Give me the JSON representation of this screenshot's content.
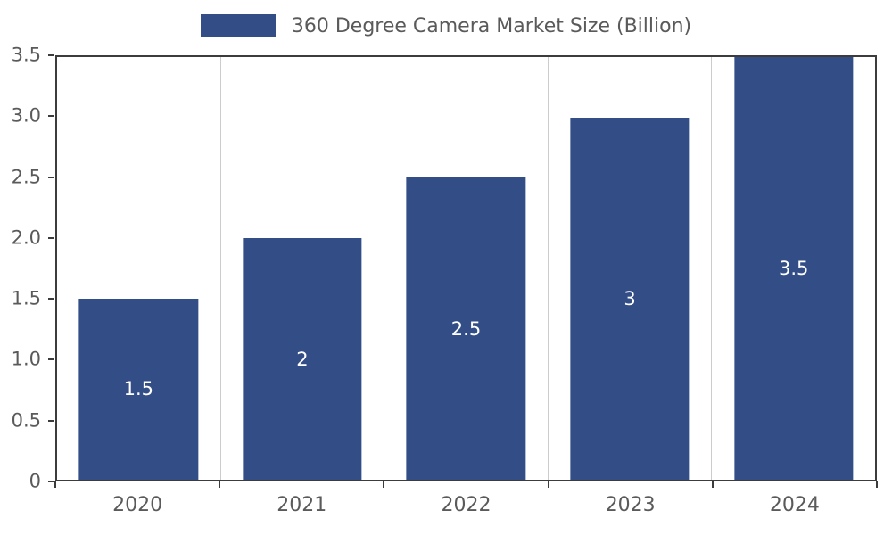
{
  "chart_data": {
    "type": "bar",
    "title": "360 Degree Camera Market Size (Billion)",
    "categories": [
      "2020",
      "2021",
      "2022",
      "2023",
      "2024"
    ],
    "values": [
      1.5,
      2,
      2.5,
      3,
      3.5
    ],
    "value_labels": [
      "1.5",
      "2",
      "2.5",
      "3",
      "3.5"
    ],
    "xlabel": "",
    "ylabel": "",
    "ylim": [
      0,
      3.5
    ],
    "yticks": [
      0,
      0.5,
      1,
      1.5,
      2,
      2.5,
      3,
      3.5
    ],
    "ytick_labels": [
      "0",
      "0.5",
      "1.0",
      "1.5",
      "2.0",
      "2.5",
      "3.0",
      "3.5"
    ],
    "legend_position": "top-center",
    "grid": "vertical-category-separators",
    "colors": {
      "bar": "#334E87",
      "grid_line": "#cccccc",
      "plot_border": "#3c3c3c",
      "axis_text": "#5a5a5a",
      "value_label": "#ffffff",
      "background": "#ffffff"
    }
  }
}
